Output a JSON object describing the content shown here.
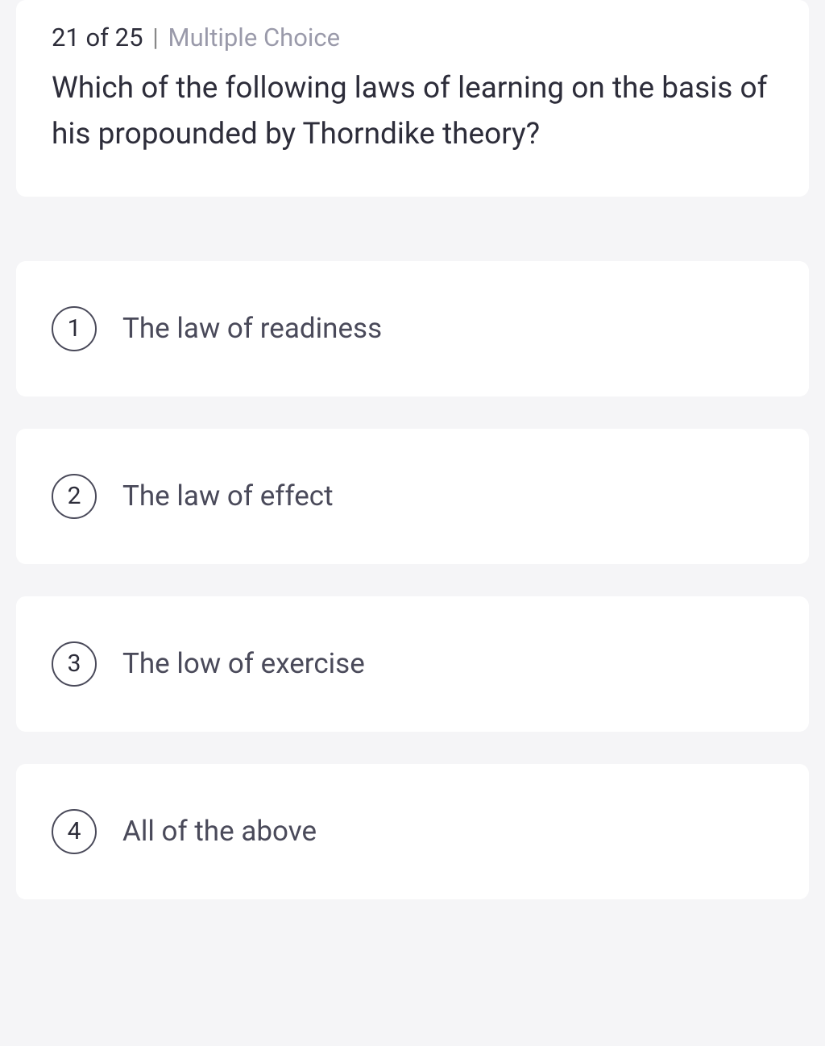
{
  "question": {
    "counter": "21 of 25",
    "type": "Multiple Choice",
    "text": "Which of the following laws of learning on the basis of his propounded by Thorndike theory?"
  },
  "options": [
    {
      "number": "1",
      "text": "The law of readiness"
    },
    {
      "number": "2",
      "text": "The law of effect"
    },
    {
      "number": "3",
      "text": "The low of exercise"
    },
    {
      "number": "4",
      "text": "All of the above"
    }
  ],
  "colors": {
    "background": "#f5f5f7",
    "card_background": "#ffffff",
    "text_primary": "#2d2d3a",
    "text_secondary": "#4a4a5a",
    "text_muted": "#9a9aaa",
    "border": "#4a4a5a"
  }
}
